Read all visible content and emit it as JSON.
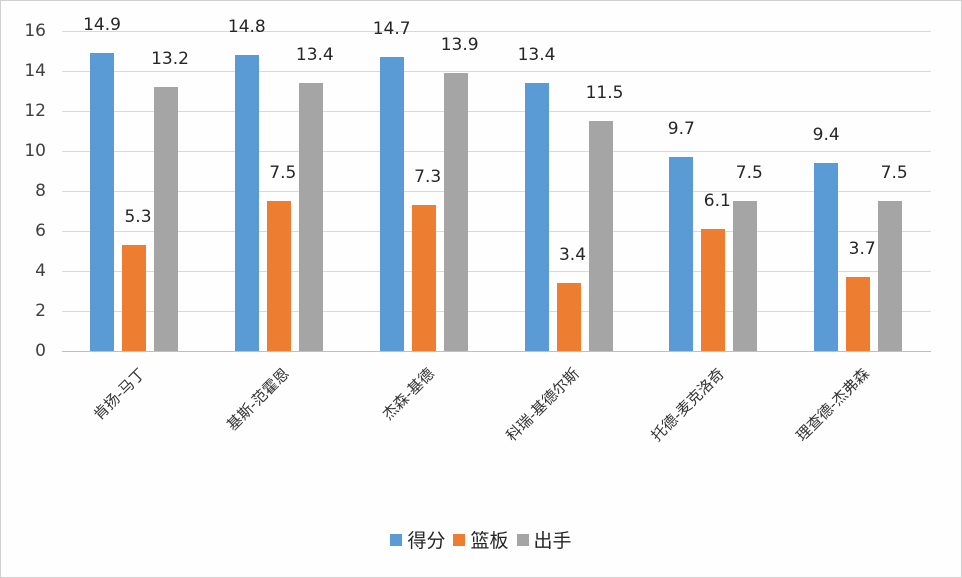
{
  "chart_data": {
    "type": "bar",
    "title": "",
    "xlabel": "",
    "ylabel": "",
    "ylim": [
      0,
      16
    ],
    "yticks": [
      0,
      2,
      4,
      6,
      8,
      10,
      12,
      14,
      16
    ],
    "grid": true,
    "legend_position": "bottom",
    "categories": [
      "肯扬-马丁",
      "基斯-范霍恩",
      "杰森-基德",
      "科瑞-基德尔斯",
      "托德-麦克洛奇",
      "理查德-杰弗森"
    ],
    "series": [
      {
        "name": "得分",
        "color": "#5b9bd5",
        "values": [
          14.9,
          14.8,
          14.7,
          13.4,
          9.7,
          9.4
        ]
      },
      {
        "name": "篮板",
        "color": "#ed7d31",
        "values": [
          5.3,
          7.5,
          7.3,
          3.4,
          6.1,
          3.7
        ]
      },
      {
        "name": "出手",
        "color": "#a5a5a5",
        "values": [
          13.2,
          13.4,
          13.9,
          11.5,
          7.5,
          7.5
        ]
      }
    ]
  },
  "yaxis": {
    "ticks": [
      "0",
      "2",
      "4",
      "6",
      "8",
      "10",
      "12",
      "14",
      "16"
    ]
  },
  "legend": {
    "items": [
      {
        "label": "得分",
        "color": "#5b9bd5"
      },
      {
        "label": "篮板",
        "color": "#ed7d31"
      },
      {
        "label": "出手",
        "color": "#a5a5a5"
      }
    ]
  }
}
